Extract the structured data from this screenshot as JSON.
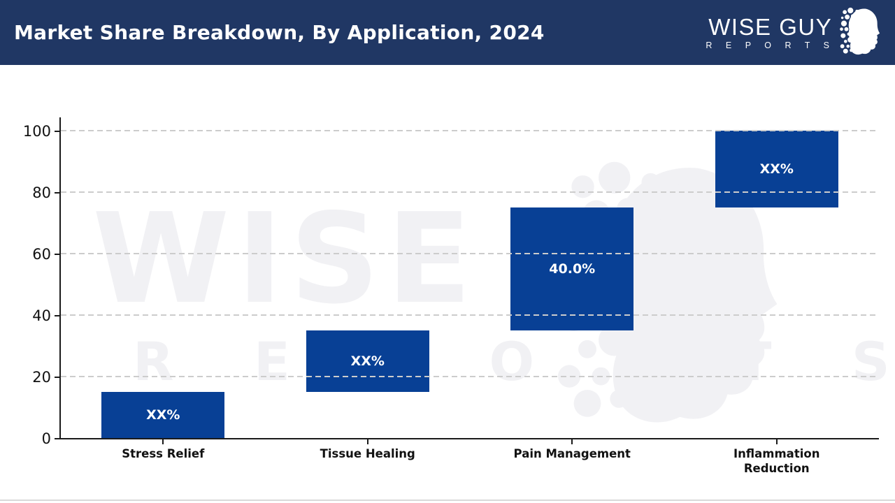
{
  "header": {
    "title": "Market Share Breakdown, By Application, 2024",
    "logo": {
      "wordmark": "WISE GUY",
      "subtext": "R E P O R T S"
    }
  },
  "watermark": {
    "line1": "WISE GU",
    "line2": "R E P O R T S"
  },
  "chart_data": {
    "type": "bar",
    "variant": "floating-waterfall",
    "title": "Market Share Breakdown, By Application, 2024",
    "categories": [
      "Stress Relief",
      "Tissue Healing",
      "Pain Management",
      "Inflammation Reduction"
    ],
    "bars": [
      {
        "category": "Stress Relief",
        "start": 0,
        "end": 15,
        "value_label": "XX%"
      },
      {
        "category": "Tissue Healing",
        "start": 15,
        "end": 35,
        "value_label": "XX%"
      },
      {
        "category": "Pain Management",
        "start": 35,
        "end": 75,
        "value_label": "40.0%"
      },
      {
        "category": "Inflammation Reduction",
        "start": 75,
        "end": 100,
        "value_label": "XX%"
      }
    ],
    "ylabel": "",
    "xlabel": "",
    "ylim": [
      0,
      100
    ],
    "yticks": [
      0,
      20,
      40,
      60,
      80,
      100
    ],
    "grid": {
      "horizontal": true,
      "style": "dashed",
      "color": "#cccccc",
      "above_bars": true
    },
    "legend": "none",
    "colors": {
      "bar": "#084095",
      "bar_label": "#ffffff",
      "axis": "#1a1a1a",
      "tick_label": "#111111",
      "header_background": "#203764",
      "watermark": "#f1f1f4"
    }
  }
}
